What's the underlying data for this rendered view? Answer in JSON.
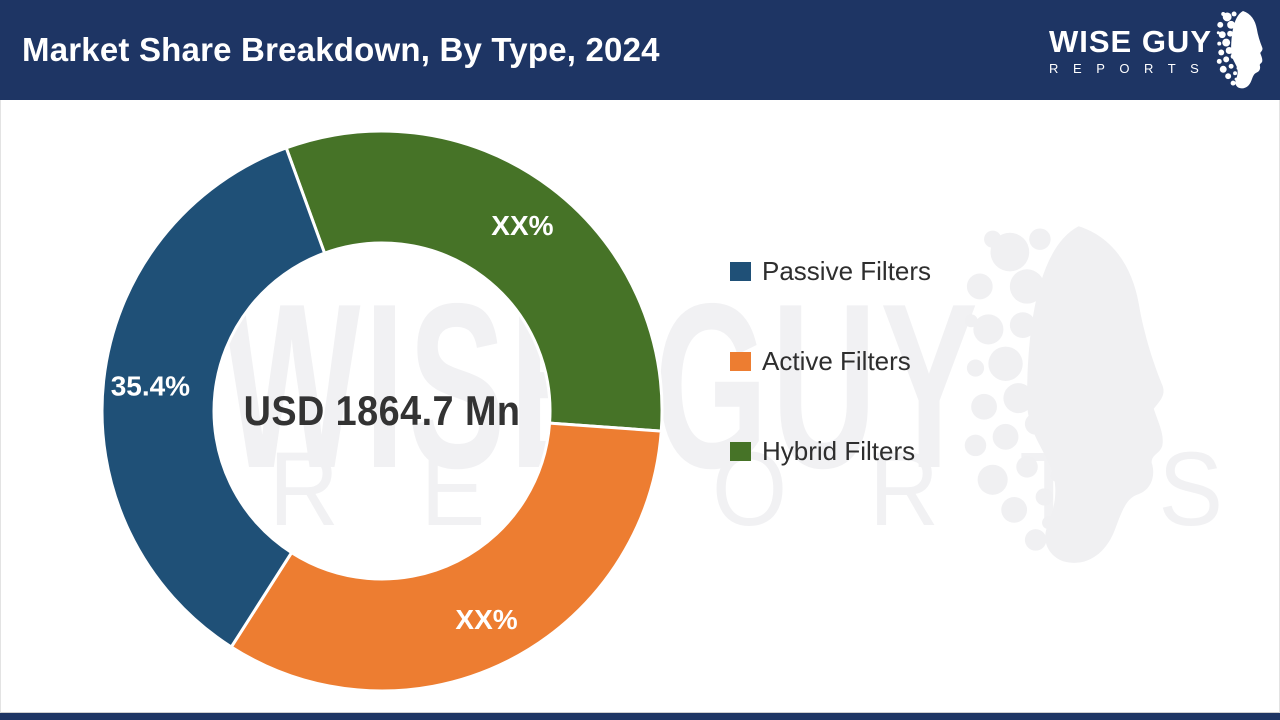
{
  "header": {
    "title": "Market Share Breakdown, By Type, 2024"
  },
  "logo": {
    "wordmark": "WISE GUY",
    "subtext": "R E P O R T S",
    "face_icon": "wise-guy-face-icon"
  },
  "watermark": {
    "line1": "WISE GUY",
    "line2": "R E P O R T S"
  },
  "chart_data": {
    "type": "donut",
    "title": "Market Share Breakdown, By Type, 2024",
    "center_label": "USD 1864.7 Mn",
    "start_angle_deg": -20,
    "direction": "clockwise",
    "inner_radius_ratio": 0.6,
    "segment_gap_color": "#FFFFFF",
    "segments": [
      {
        "name": "Hybrid Filters",
        "label": "XX%",
        "percent": 31.7,
        "color": "#467327"
      },
      {
        "name": "Active Filters",
        "label": "XX%",
        "percent": 32.9,
        "color": "#ED7D31"
      },
      {
        "name": "Passive Filters",
        "label": "35.4%",
        "percent": 35.4,
        "color": "#1F5077"
      }
    ],
    "legend": {
      "position": "right",
      "items": [
        {
          "label": "Passive Filters",
          "color": "#1F5077"
        },
        {
          "label": "Active Filters",
          "color": "#ED7D31"
        },
        {
          "label": "Hybrid Filters",
          "color": "#467327"
        }
      ]
    }
  },
  "colors": {
    "header_bg": "#1E3564",
    "footer_bar": "#1E3564",
    "title_text": "#FFFFFF",
    "center_text": "#333333",
    "legend_text": "#2E2E2E",
    "segment_label_text": "#FFFFFF",
    "watermark": "#F1F1F3",
    "background": "#FFFFFF"
  }
}
